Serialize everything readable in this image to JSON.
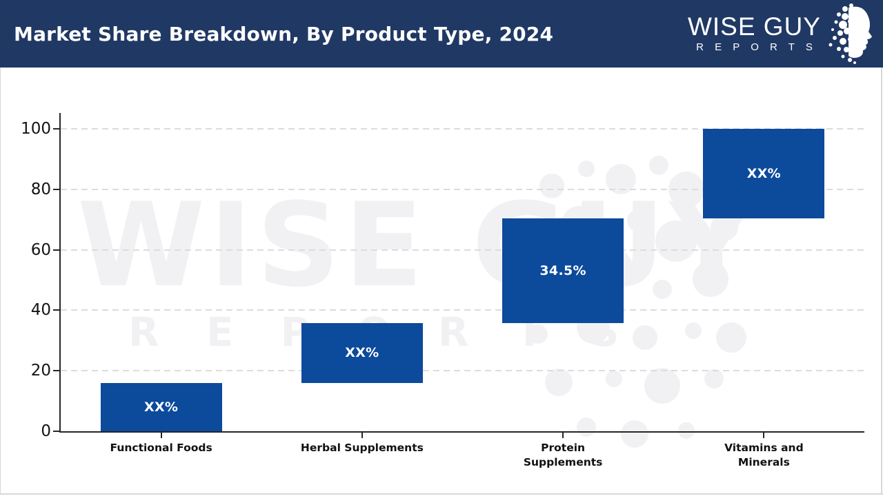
{
  "header": {
    "title": "Market Share Breakdown, By Product Type, 2024",
    "logo": {
      "line1": "WISE GUY",
      "line2": "R E P O R T S"
    }
  },
  "watermark": {
    "line1": "WISE GUY",
    "line2": "R E P O R T S"
  },
  "chart_data": {
    "type": "bar",
    "variant": "floating-waterfall",
    "title": "Market Share Breakdown, By Product Type, 2024",
    "categories": [
      "Functional Foods",
      "Herbal Supplements",
      "Protein\nSupplements",
      "Vitamins and\nMinerals"
    ],
    "segments": [
      {
        "category": "Functional Foods",
        "start": 0,
        "end": 16,
        "label": "XX%"
      },
      {
        "category": "Herbal Supplements",
        "start": 16,
        "end": 35.8,
        "label": "XX%"
      },
      {
        "category": "Protein Supplements",
        "start": 35.8,
        "end": 70.3,
        "label": "34.5%"
      },
      {
        "category": "Vitamins and Minerals",
        "start": 70.3,
        "end": 100,
        "label": "XX%"
      }
    ],
    "yticks": [
      0,
      20,
      40,
      60,
      80,
      100
    ],
    "ylim": [
      0,
      105
    ],
    "xlabel": "",
    "ylabel": "",
    "grid": "horizontal-dashed",
    "legend": "none",
    "bar_color": "#0c4a9c",
    "bar_label_color": "#ffffff",
    "header_color": "#203864"
  }
}
